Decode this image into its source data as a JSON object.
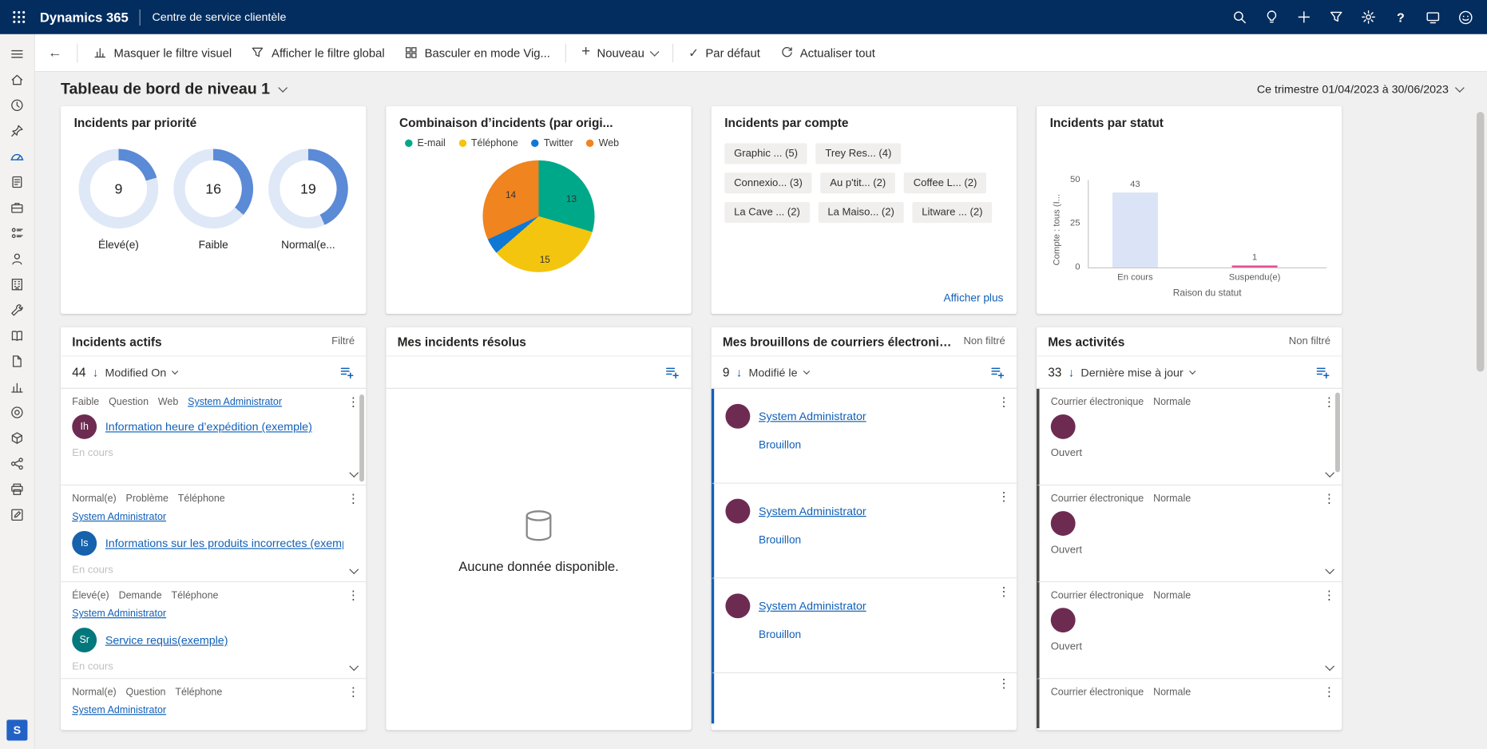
{
  "glyphs": {
    "back": "←",
    "plus": "+",
    "check": "✓",
    "help": "?",
    "kebab": "⋮",
    "sort_desc": "↓"
  },
  "topnav": {
    "brand": "Dynamics 365",
    "app": "Centre de service clientèle"
  },
  "commandbar": {
    "buttons": [
      {
        "label": "Masquer le filtre visuel"
      },
      {
        "label": "Afficher le filtre global"
      },
      {
        "label": "Basculer en mode Vig..."
      },
      {
        "label": "Nouveau"
      },
      {
        "label": "Par défaut"
      },
      {
        "label": "Actualiser tout"
      }
    ]
  },
  "page": {
    "title": "Tableau de bord de niveau 1",
    "timeframe": "Ce trimestre 01/04/2023 à 30/06/2023"
  },
  "sidebar": {
    "badge": "S"
  },
  "cards": {
    "priority": {
      "title": "Incidents par priorité",
      "color": "#5b8ad6",
      "track": "#dfe8f7",
      "donuts": [
        {
          "value": "9",
          "label": "Élevé(e)",
          "fraction": 0.205
        },
        {
          "value": "16",
          "label": "Faible",
          "fraction": 0.364
        },
        {
          "value": "19",
          "label": "Normal(e...",
          "fraction": 0.432
        }
      ]
    },
    "origin": {
      "title": "Combinaison d’incidents (par origi...",
      "legend": [
        {
          "label": "E-mail",
          "color": "#00a88a"
        },
        {
          "label": "Téléphone",
          "color": "#f3c50f"
        },
        {
          "label": "Twitter",
          "color": "#0f78d4"
        },
        {
          "label": "Web",
          "color": "#f0841e"
        }
      ],
      "slices": [
        {
          "label": "E-mail",
          "value": 13,
          "color": "#00a88a"
        },
        {
          "label": "Téléphone",
          "value": 15,
          "color": "#f3c50f"
        },
        {
          "label": "Twitter",
          "value": 2,
          "color": "#0f78d4"
        },
        {
          "label": "Web",
          "value": 14,
          "color": "#f0841e"
        }
      ]
    },
    "account": {
      "title": "Incidents par compte",
      "tags": [
        "Graphic ... (5)",
        "Trey Res... (4)",
        "Connexio... (3)",
        "Au p'tit... (2)",
        "Coffee L... (2)",
        "La Cave ... (2)",
        "La Maiso... (2)",
        "Litware ... (2)"
      ],
      "show_more": "Afficher plus"
    },
    "status": {
      "title": "Incidents par statut",
      "y_axis_label": "Compte : tous (I...",
      "x_axis_label": "Raison du statut",
      "y_max": 50,
      "y_ticks": [
        "50",
        "25",
        "0"
      ],
      "bars": [
        {
          "label": "En cours",
          "value": 43,
          "display": "43",
          "color": "#dbe4f6"
        },
        {
          "label": "Suspendu(e)",
          "value": 1,
          "display": "1",
          "color": "#e2498f"
        }
      ]
    }
  },
  "streams": {
    "active": {
      "title": "Incidents actifs",
      "filter_state": "Filtré",
      "count": "44",
      "sort": "Modified On",
      "items": [
        {
          "tags": [
            "Faible",
            "Question",
            "Web"
          ],
          "owner": "System Administrator",
          "initials": "Ih",
          "avatar_color": "#6e2b52",
          "title": "Information heure d’expédition (exemple)",
          "status": "En cours"
        },
        {
          "tags": [
            "Normal(e)",
            "Problème",
            "Téléphone"
          ],
          "owner": "System Administrator",
          "initials": "Is",
          "avatar_color": "#1662ac",
          "title": "Informations sur les produits incorrectes (exemple)",
          "status": "En cours"
        },
        {
          "tags": [
            "Élevé(e)",
            "Demande",
            "Téléphone"
          ],
          "owner": "System Administrator",
          "initials": "Sr",
          "avatar_color": "#03787c",
          "title": "Service requis(exemple)",
          "status": "En cours"
        },
        {
          "tags": [
            "Normal(e)",
            "Question",
            "Téléphone"
          ],
          "owner": "System Administrator"
        }
      ]
    },
    "resolved": {
      "title": "Mes incidents résolus",
      "empty_text": "Aucune donnée disponible."
    },
    "drafts": {
      "title": "Mes brouillons de courriers électroniques",
      "filter_state": "Non filtré",
      "count": "9",
      "sort": "Modifié le",
      "items": [
        {
          "owner": "System Administrator",
          "status": "Brouillon",
          "initials": "",
          "avatar_color": "#6e2b52"
        },
        {
          "owner": "System Administrator",
          "status": "Brouillon",
          "initials": "",
          "avatar_color": "#6e2b52"
        },
        {
          "owner": "System Administrator",
          "status": "Brouillon",
          "initials": "",
          "avatar_color": "#6e2b52"
        }
      ]
    },
    "activities": {
      "title": "Mes activités",
      "filter_state": "Non filtré",
      "count": "33",
      "sort": "Dernière mise à jour",
      "items": [
        {
          "tags": [
            "Courrier électronique",
            "Normale"
          ],
          "status": "Ouvert",
          "initials": "",
          "avatar_color": "#6e2b52"
        },
        {
          "tags": [
            "Courrier électronique",
            "Normale"
          ],
          "status": "Ouvert",
          "initials": "",
          "avatar_color": "#6e2b52"
        },
        {
          "tags": [
            "Courrier électronique",
            "Normale"
          ],
          "status": "Ouvert",
          "initials": "",
          "avatar_color": "#6e2b52"
        },
        {
          "tags": [
            "Courrier électronique",
            "Normale"
          ]
        }
      ]
    }
  }
}
